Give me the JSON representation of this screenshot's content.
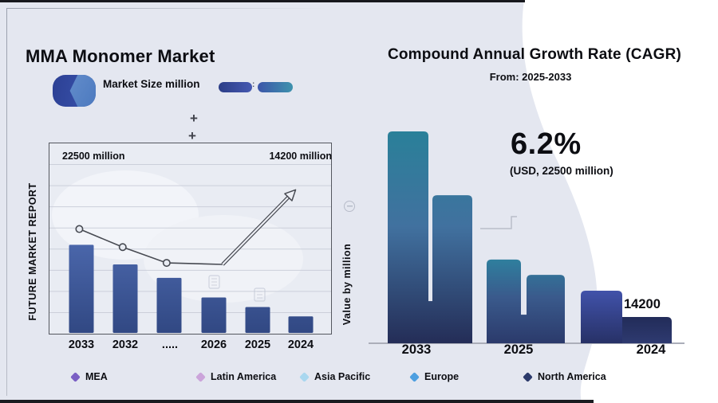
{
  "header": {
    "title": "MMA Monomer Market",
    "subtitle": "Market Size million",
    "ratio_separator": ":",
    "plus_marks": [
      "+",
      "+"
    ]
  },
  "cagr": {
    "title": "Compound Annual Growth Rate (CAGR)",
    "subtitle": "From: 2025-2033",
    "value": "6.2%",
    "caption": "(USD, 22500 million)"
  },
  "legend": [
    {
      "label": "MEA",
      "color": "#7a5fc4"
    },
    {
      "label": "Latin America",
      "color": "#cba4da"
    },
    {
      "label": "Asia Pacific",
      "color": "#a9d7ef"
    },
    {
      "label": "Europe",
      "color": "#4d9fe0"
    },
    {
      "label": "North America",
      "color": "#2c3a6b"
    }
  ],
  "chart_data": [
    {
      "type": "bar",
      "categories": [
        "2033",
        "2032",
        ".....",
        "2026",
        "2025",
        "2024"
      ],
      "values_relative": [
        0.463,
        0.36,
        0.289,
        0.186,
        0.136,
        0.087
      ],
      "value_label_start": "22500 million",
      "value_label_end": "14200 million",
      "watermark": "FUTURE MARKET REPORT",
      "ylabel": "Value by million",
      "trend_line_points": [
        [
          0.106,
          0.45
        ],
        [
          0.26,
          0.545
        ],
        [
          0.416,
          0.628
        ],
        [
          0.615,
          0.636
        ]
      ],
      "trend_arrow_end": [
        0.874,
        0.244
      ],
      "bar_gradient": [
        "#4f6cb2",
        "#314883"
      ],
      "gridlines": 8
    },
    {
      "type": "paired-bar",
      "categories": [
        "2033",
        "2025",
        "2024"
      ],
      "series": [
        {
          "name": "primary",
          "values_relative": [
            1.0,
            0.395,
            0.248
          ]
        },
        {
          "name": "secondary",
          "values_relative": [
            0.699,
            0.323,
            0.124
          ]
        }
      ],
      "pair_base_relative": [
        0.199,
        0.135,
        0
      ],
      "annotation": {
        "text": "14200",
        "category": "2024"
      },
      "gradients": {
        "pairs": [
          [
            "#2a8099",
            "#41719f",
            "#242d57"
          ],
          [
            "#2f7f9e",
            "#3a5a8c",
            "#2b3a6b"
          ],
          [
            "#4152aa",
            "#273166"
          ]
        ],
        "pair3_right": [
          "#222c59",
          "#2e3a70"
        ]
      }
    }
  ]
}
